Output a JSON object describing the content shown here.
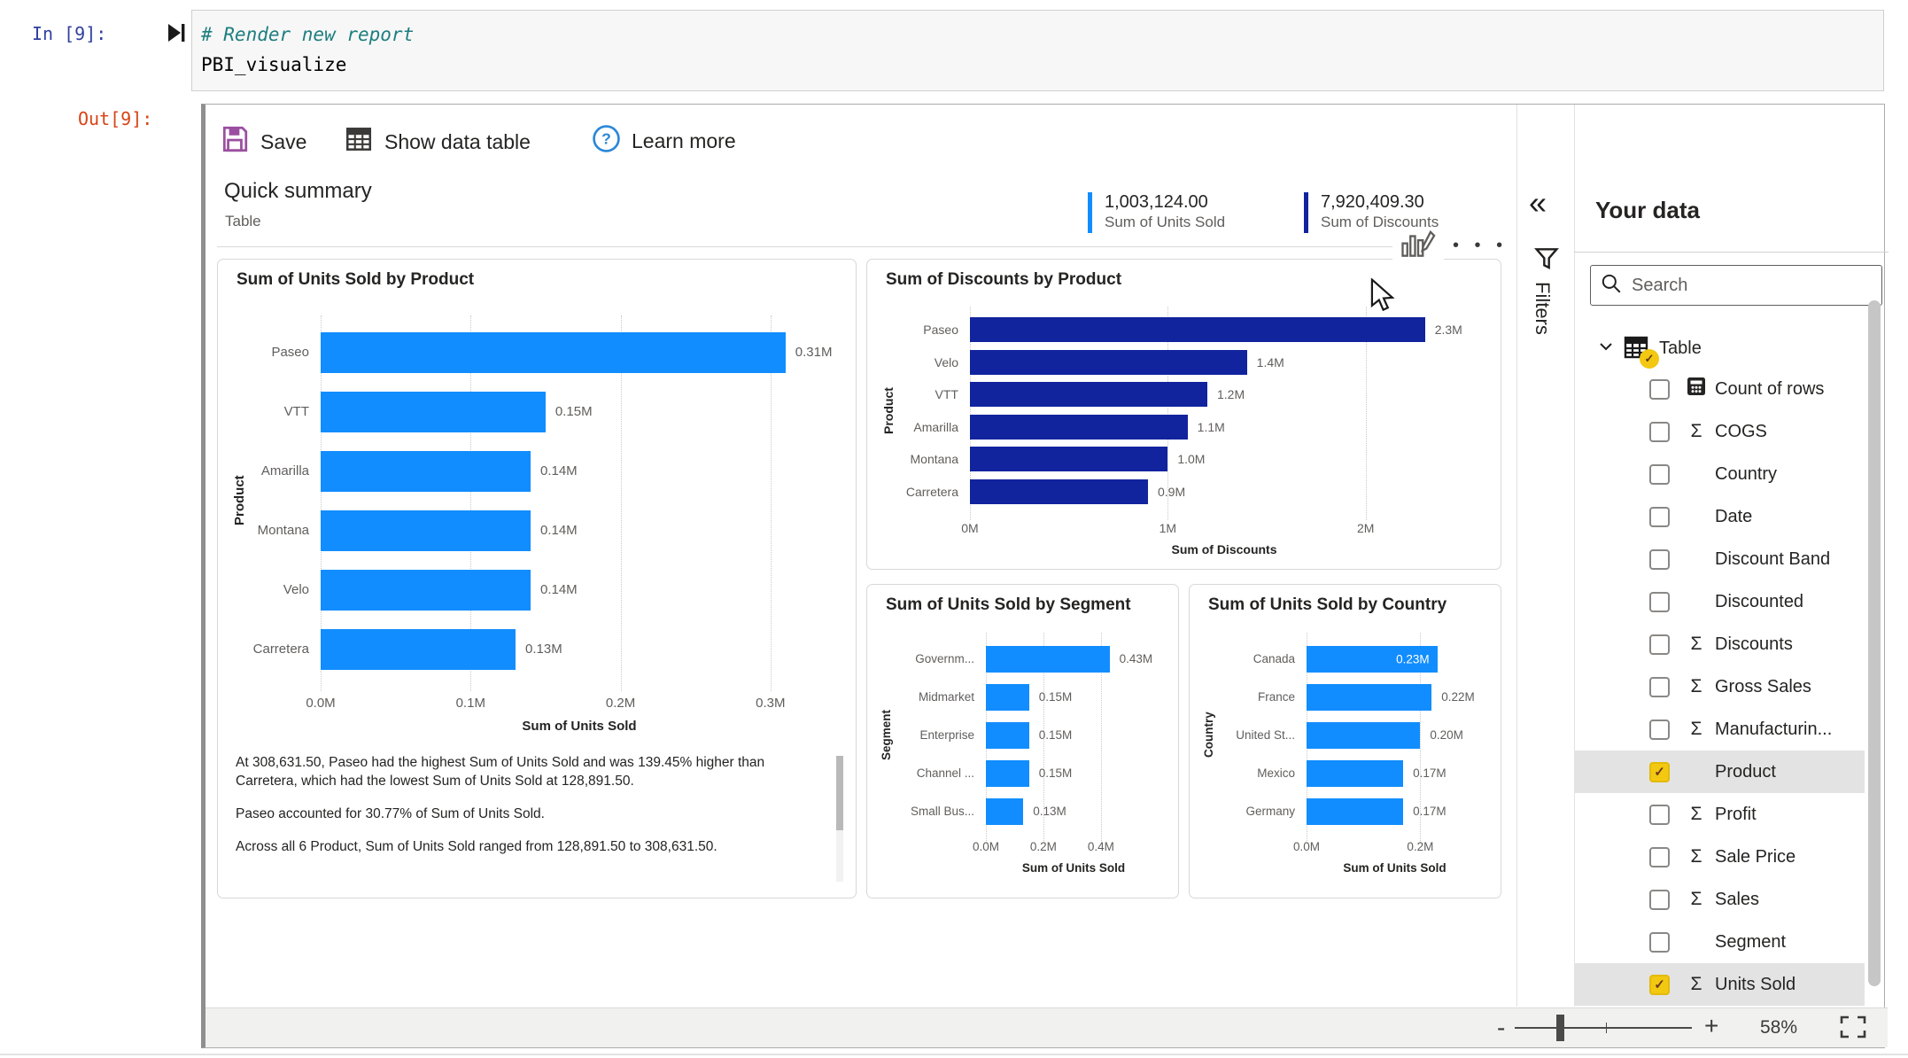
{
  "notebook": {
    "in_prompt": "In [9]:",
    "out_prompt": "Out[9]:",
    "code_comment": "# Render new report",
    "code_line": "PBI_visualize"
  },
  "toolbar": {
    "save": "Save",
    "show_data_table": "Show data table",
    "learn_more": "Learn more"
  },
  "summary": {
    "title": "Quick summary",
    "subtitle": "Table",
    "metrics": [
      {
        "value": "1,003,124.00",
        "label": "Sum of Units Sold",
        "color": "#118DFF"
      },
      {
        "value": "7,920,409.30",
        "label": "Sum of Discounts",
        "color": "#12239E"
      }
    ]
  },
  "filters_panel": {
    "label": "Filters"
  },
  "chart_data": [
    {
      "type": "bar",
      "orientation": "horizontal",
      "title": "Sum of Units Sold by Product",
      "ylabel": "Product",
      "xlabel": "Sum of Units Sold",
      "categories": [
        "Paseo",
        "VTT",
        "Amarilla",
        "Montana",
        "Velo",
        "Carretera"
      ],
      "values": [
        0.31,
        0.15,
        0.14,
        0.14,
        0.14,
        0.13
      ],
      "labels": [
        "0.31M",
        "0.15M",
        "0.14M",
        "0.14M",
        "0.14M",
        "0.13M"
      ],
      "ticks": [
        {
          "v": 0,
          "label": "0.0M"
        },
        {
          "v": 0.1,
          "label": "0.1M"
        },
        {
          "v": 0.2,
          "label": "0.2M"
        },
        {
          "v": 0.3,
          "label": "0.3M"
        }
      ],
      "domain": 0.345,
      "color": "#118DFF",
      "grid": "dotted"
    },
    {
      "type": "bar",
      "orientation": "horizontal",
      "title": "Sum of Discounts by Product",
      "ylabel": "Product",
      "xlabel": "Sum of Discounts",
      "categories": [
        "Paseo",
        "Velo",
        "VTT",
        "Amarilla",
        "Montana",
        "Carretera"
      ],
      "values": [
        2.3,
        1.4,
        1.2,
        1.1,
        1.0,
        0.9
      ],
      "labels": [
        "2.3M",
        "1.4M",
        "1.2M",
        "1.1M",
        "1.0M",
        "0.9M"
      ],
      "ticks": [
        {
          "v": 0,
          "label": "0M"
        },
        {
          "v": 1,
          "label": "1M"
        },
        {
          "v": 2,
          "label": "2M"
        }
      ],
      "domain": 2.57,
      "color": "#12239E",
      "grid": "dotted"
    },
    {
      "type": "bar",
      "orientation": "horizontal",
      "title": "Sum of Units Sold by Segment",
      "ylabel": "Segment",
      "xlabel": "Sum of Units Sold",
      "categories": [
        "Governm...",
        "Midmarket",
        "Enterprise",
        "Channel ...",
        "Small Bus..."
      ],
      "values": [
        0.43,
        0.15,
        0.15,
        0.15,
        0.13
      ],
      "labels": [
        "0.43M",
        "0.15M",
        "0.15M",
        "0.15M",
        "0.13M"
      ],
      "ticks": [
        {
          "v": 0,
          "label": "0.0M"
        },
        {
          "v": 0.2,
          "label": "0.2M"
        },
        {
          "v": 0.4,
          "label": "0.4M"
        }
      ],
      "domain": 0.61,
      "color": "#118DFF",
      "grid": "dotted"
    },
    {
      "type": "bar",
      "orientation": "horizontal",
      "title": "Sum of Units Sold by Country",
      "ylabel": "Country",
      "xlabel": "Sum of Units Sold",
      "categories": [
        "Canada",
        "France",
        "United St...",
        "Mexico",
        "Germany"
      ],
      "values": [
        0.23,
        0.22,
        0.2,
        0.17,
        0.17
      ],
      "labels": [
        "0.23M",
        "0.22M",
        "0.20M",
        "0.17M",
        "0.17M"
      ],
      "inside": [
        true,
        false,
        false,
        false,
        false
      ],
      "ticks": [
        {
          "v": 0,
          "label": "0.0M"
        },
        {
          "v": 0.2,
          "label": "0.2M"
        }
      ],
      "domain": 0.31,
      "color": "#118DFF",
      "grid": "dotted"
    }
  ],
  "narrative": {
    "lines": [
      "At 308,631.50,  Paseo had the highest Sum of Units Sold and was 139.45% higher than  Carretera, which had the lowest Sum of Units Sold at 128,891.50.",
      "Paseo accounted for 30.77% of Sum of Units Sold.",
      "Across all 6 Product, Sum of Units Sold ranged from 128,891.50 to 308,631.50."
    ]
  },
  "your_data": {
    "title": "Your data",
    "search_placeholder": "Search",
    "table_name": "Table",
    "accent_yellow": "#F2C811",
    "fields": [
      {
        "label": "Count of rows",
        "icon": "calculator",
        "checked": false,
        "highlighted": false
      },
      {
        "label": "COGS",
        "icon": "sigma",
        "checked": false,
        "highlighted": false
      },
      {
        "label": "Country",
        "icon": "none",
        "checked": false,
        "highlighted": false
      },
      {
        "label": "Date",
        "icon": "none",
        "checked": false,
        "highlighted": false
      },
      {
        "label": "Discount Band",
        "icon": "none",
        "checked": false,
        "highlighted": false
      },
      {
        "label": "Discounted",
        "icon": "none",
        "checked": false,
        "highlighted": false
      },
      {
        "label": "Discounts",
        "icon": "sigma",
        "checked": false,
        "highlighted": false
      },
      {
        "label": "Gross Sales",
        "icon": "sigma",
        "checked": false,
        "highlighted": false
      },
      {
        "label": "Manufacturin...",
        "icon": "sigma",
        "checked": false,
        "highlighted": false
      },
      {
        "label": "Product",
        "icon": "none",
        "checked": true,
        "highlighted": true
      },
      {
        "label": "Profit",
        "icon": "sigma",
        "checked": false,
        "highlighted": false
      },
      {
        "label": "Sale Price",
        "icon": "sigma",
        "checked": false,
        "highlighted": false
      },
      {
        "label": "Sales",
        "icon": "sigma",
        "checked": false,
        "highlighted": false
      },
      {
        "label": "Segment",
        "icon": "none",
        "checked": false,
        "highlighted": false
      },
      {
        "label": "Units Sold",
        "icon": "sigma",
        "checked": true,
        "highlighted": true
      }
    ]
  },
  "status_bar": {
    "zoom_percent": "58%",
    "minus": "-",
    "plus": "+"
  }
}
